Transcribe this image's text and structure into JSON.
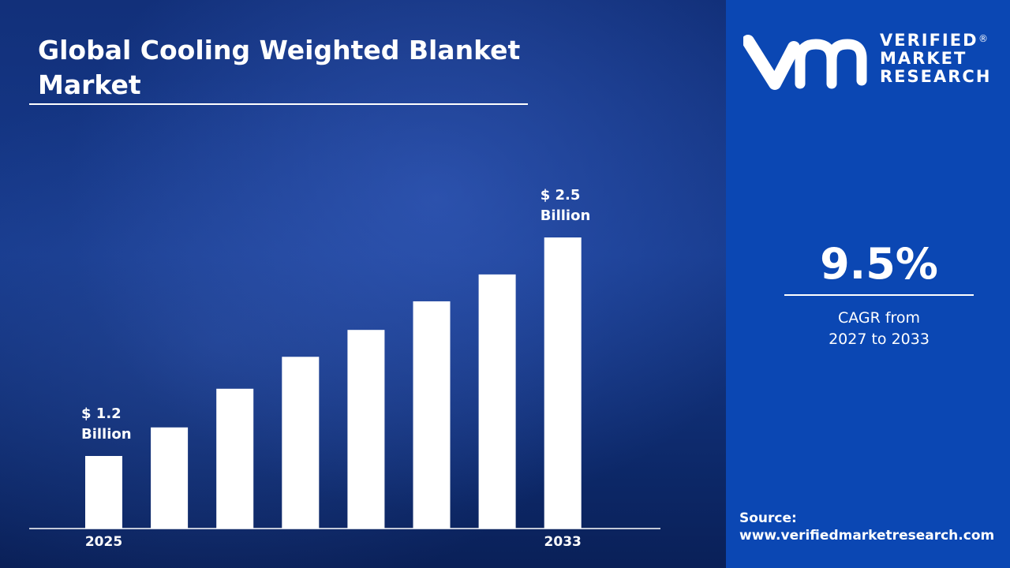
{
  "title": "Global Cooling Weighted Blanket Market",
  "chart_data": {
    "type": "bar",
    "title": "Global Cooling Weighted Blanket Market",
    "x_labels": [
      "2025",
      "",
      "",
      "",
      "",
      "",
      "",
      "2033"
    ],
    "values": [
      1.2,
      1.37,
      1.6,
      1.79,
      1.95,
      2.12,
      2.28,
      2.5
    ],
    "unit": "USD Billion",
    "data_labels": [
      {
        "index": 0,
        "line1": "$ 1.2",
        "line2": "Billion"
      },
      {
        "index": 7,
        "line1": "$ 2.5",
        "line2": "Billion"
      }
    ],
    "bar_color": "#ffffff",
    "grid": false,
    "legend": "none"
  },
  "cagr": {
    "value": "9.5%",
    "label_line1": "CAGR from",
    "label_line2": "2027 to 2033"
  },
  "brand": {
    "line1": "VERIFIED",
    "line2": "MARKET",
    "line3": "RESEARCH",
    "registered": "®",
    "color": "#0b47b3"
  },
  "source": {
    "label": "Source:",
    "url": "www.verifiedmarketresearch.com"
  }
}
